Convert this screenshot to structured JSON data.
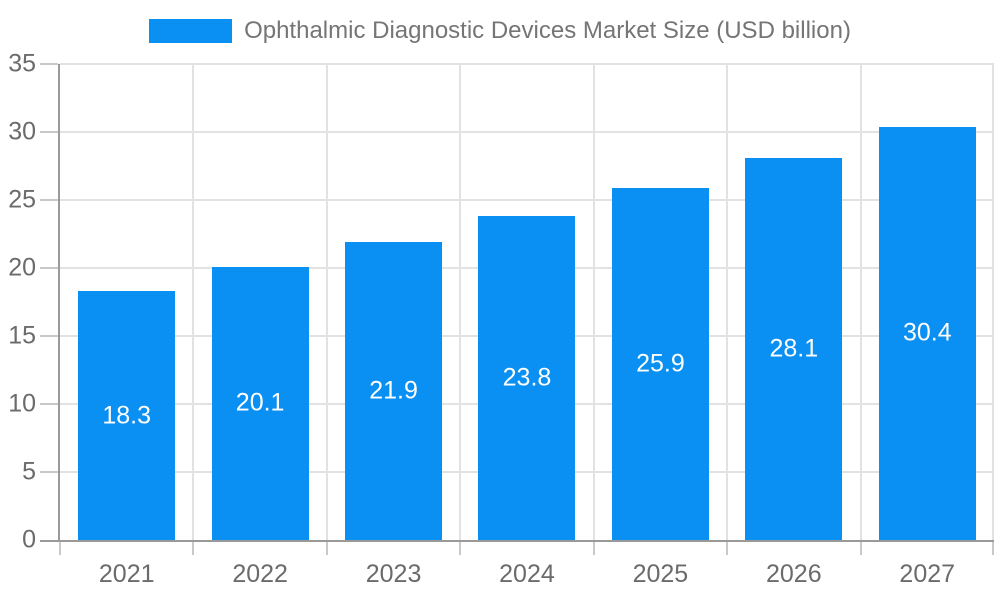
{
  "chart_data": {
    "type": "bar",
    "title": "Ophthalmic Diagnostic Devices Market Size (USD billion)",
    "series": [
      {
        "name": "Ophthalmic Diagnostic Devices Market Size (USD billion)",
        "values": [
          18.3,
          20.1,
          21.9,
          23.8,
          25.9,
          28.1,
          30.4
        ]
      }
    ],
    "categories": [
      "2021",
      "2022",
      "2023",
      "2024",
      "2025",
      "2026",
      "2027"
    ],
    "value_labels": [
      "18.3",
      "20.1",
      "21.9",
      "23.8",
      "25.9",
      "28.1",
      "30.4"
    ],
    "y_tick_labels": [
      "0",
      "5",
      "10",
      "15",
      "20",
      "25",
      "30",
      "35"
    ],
    "ylim": [
      0,
      35
    ],
    "ytick_step": 5,
    "grid": true,
    "legend_position": "top-center",
    "value_label_position": "inside-center",
    "colors": {
      "bar": "#0a8ff2",
      "grid": "#e2e2e2",
      "axis": "#9a9a9a",
      "tick": "#c9c9c9",
      "axis_text": "#6b6b6b",
      "title_text": "#757575",
      "value_label": "#ffffff",
      "background": "#ffffff"
    }
  }
}
